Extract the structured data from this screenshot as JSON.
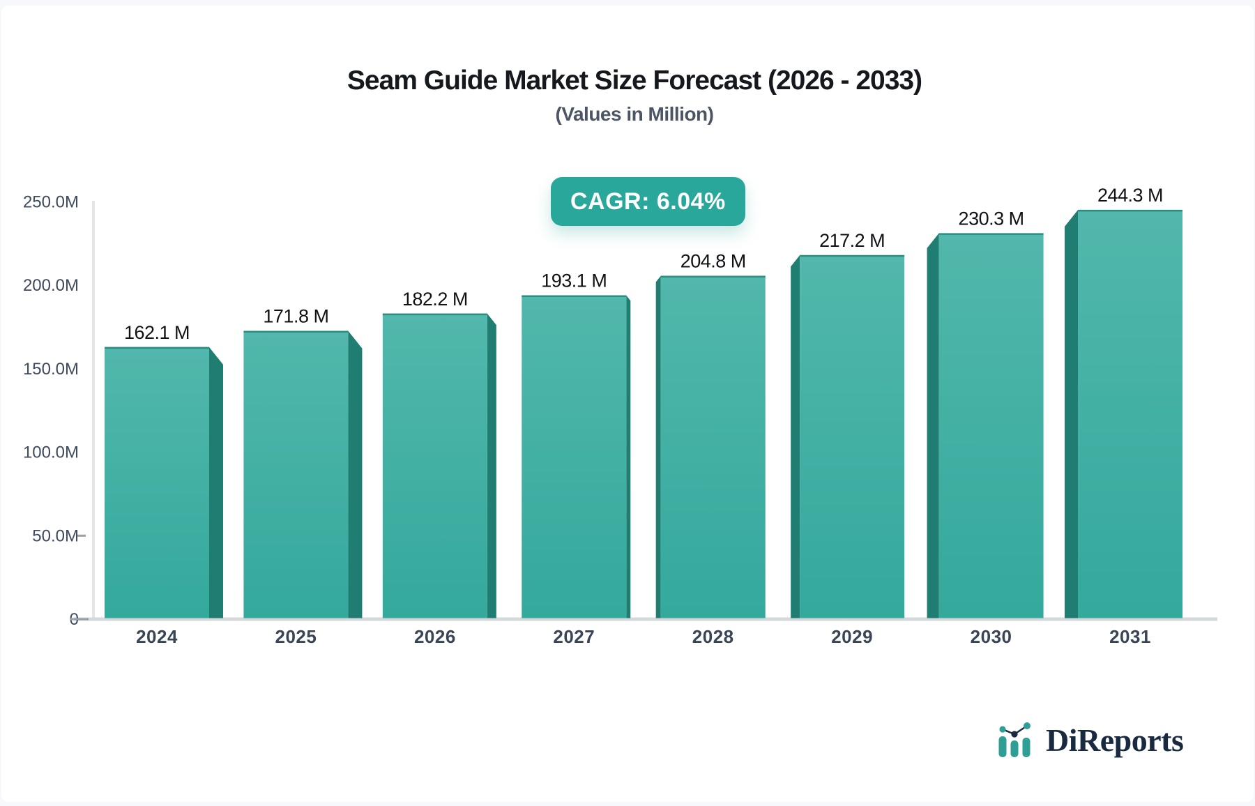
{
  "page": {
    "background": "#f7f8fb",
    "card_background": "#ffffff"
  },
  "header": {
    "title": "Seam Guide Market Size Forecast (2026 - 2033)",
    "subtitle": "(Values in Million)"
  },
  "badge": {
    "label": "CAGR: 6.04%",
    "background": "#2aa79b",
    "text_color": "#ffffff"
  },
  "chart_data": {
    "type": "bar",
    "title": "Seam Guide Market Size Forecast (2026 - 2033)",
    "subtitle": "(Values in Million)",
    "unit": "Million",
    "categories": [
      "2024",
      "2025",
      "2026",
      "2027",
      "2028",
      "2029",
      "2030",
      "2031"
    ],
    "values": [
      162.1,
      171.8,
      182.2,
      193.1,
      204.8,
      217.2,
      230.3,
      244.3
    ],
    "value_labels": [
      "162.1 M",
      "171.8 M",
      "182.2 M",
      "193.1 M",
      "204.8 M",
      "217.2 M",
      "230.3 M",
      "244.3 M"
    ],
    "cagr": "6.04%",
    "ylim": [
      0,
      250
    ],
    "yticks": {
      "values": [
        0,
        50,
        100,
        150,
        200,
        250
      ],
      "labels": [
        "0",
        "50.0M",
        "100.0M",
        "150.0M",
        "200.0M",
        "250.0M"
      ]
    },
    "grid": false,
    "legend": "none",
    "style": "3d-perspective-bars",
    "colors": {
      "bar_face_top": "#52b7ac",
      "bar_face_bottom": "#34a99c",
      "bar_side": "#1f7e71",
      "bar_top_edge": "#2a8d80",
      "axis_line": "#e3e5e9",
      "baseline": "#d5d8db",
      "tick": "#98a0a8",
      "value_label": "#0f1114",
      "axis_text": "#3e4b5d",
      "category_text": "#394554"
    }
  },
  "logo": {
    "text": "DiReports",
    "icon": "mini-bar-chart-icon",
    "text_color": "#182940",
    "icon_teal": "#2f9e95",
    "icon_navy": "#182940"
  }
}
